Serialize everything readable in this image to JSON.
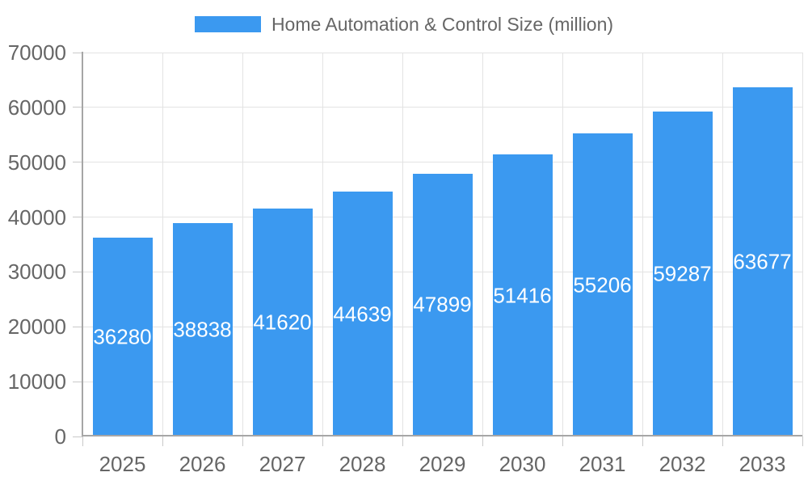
{
  "chart_data": {
    "type": "bar",
    "title": "",
    "legend": "Home Automation & Control Size (million)",
    "legend_position": "top",
    "categories": [
      "2025",
      "2026",
      "2027",
      "2028",
      "2029",
      "2030",
      "2031",
      "2032",
      "2033"
    ],
    "values": [
      36280,
      38838,
      41620,
      44639,
      47899,
      51416,
      55206,
      59287,
      63677
    ],
    "xlabel": "",
    "ylabel": "",
    "ylim": [
      0,
      70000
    ],
    "yticks": [
      0,
      10000,
      20000,
      30000,
      40000,
      50000,
      60000,
      70000
    ],
    "grid": true,
    "data_labels": "inside-middle",
    "bar_color": "#3B99F0",
    "grid_color": "#E3E3E3",
    "tick_color": "#C9C9C9",
    "axis_color": "#A6A6A6",
    "axis_text_color": "#666666",
    "data_label_color": "#FFFFFF"
  }
}
